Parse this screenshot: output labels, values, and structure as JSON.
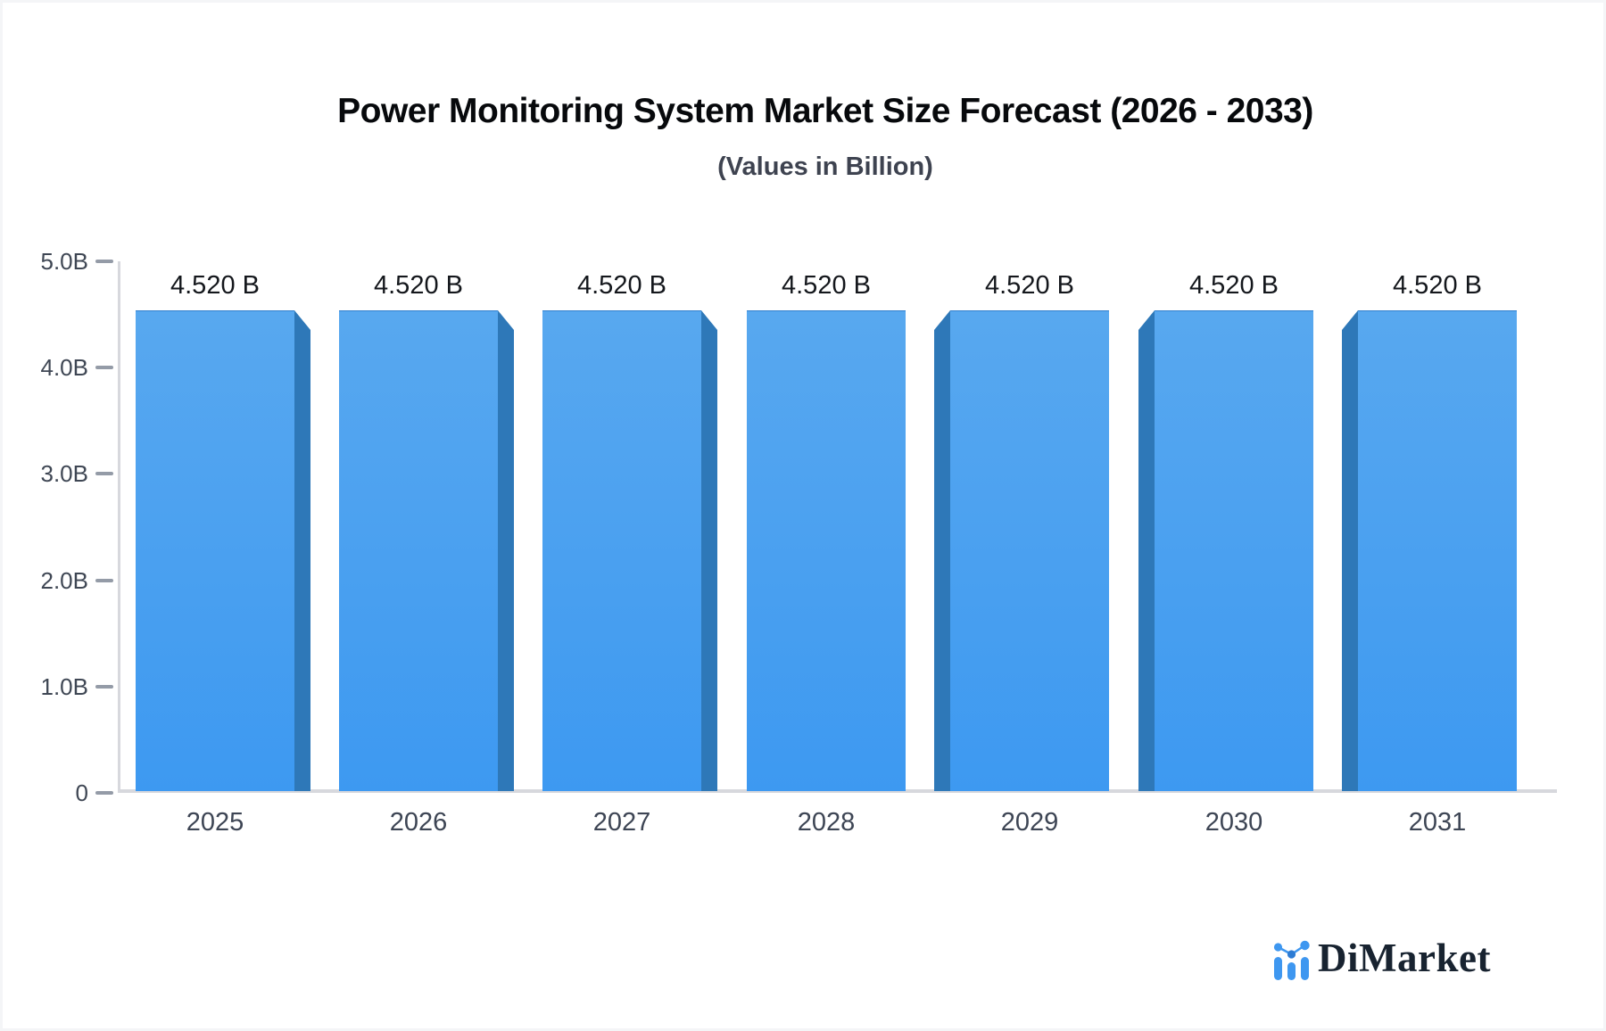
{
  "header": {
    "title": "Power Monitoring System Market Size Forecast (2026 - 2033)",
    "subtitle": "(Values in Billion)"
  },
  "chart_data": {
    "type": "bar",
    "title": "Power Monitoring System Market Size Forecast (2026 - 2033)",
    "subtitle": "(Values in Billion)",
    "categories": [
      "2025",
      "2026",
      "2027",
      "2028",
      "2029",
      "2030",
      "2031"
    ],
    "values": [
      4.52,
      4.52,
      4.52,
      4.52,
      4.52,
      4.52,
      4.52
    ],
    "value_labels": [
      "4.520 B",
      "4.520 B",
      "4.520 B",
      "4.520 B",
      "4.520 B",
      "4.520 B",
      "4.520 B"
    ],
    "xlabel": "",
    "ylabel": "",
    "ylim": [
      0,
      5
    ],
    "yticks": [
      "5.0B",
      "4.0B",
      "3.0B",
      "2.0B",
      "1.0B",
      "0"
    ],
    "grid": false,
    "legend": false,
    "bar_color_top": "#58a8ef",
    "bar_color_bottom": "#3d99f1",
    "bar_side_color": "#2e78b8"
  },
  "footer": {
    "brand": "DiMarket",
    "brand_color": "#182330",
    "brand_icon_blue": "#3e97f0"
  }
}
